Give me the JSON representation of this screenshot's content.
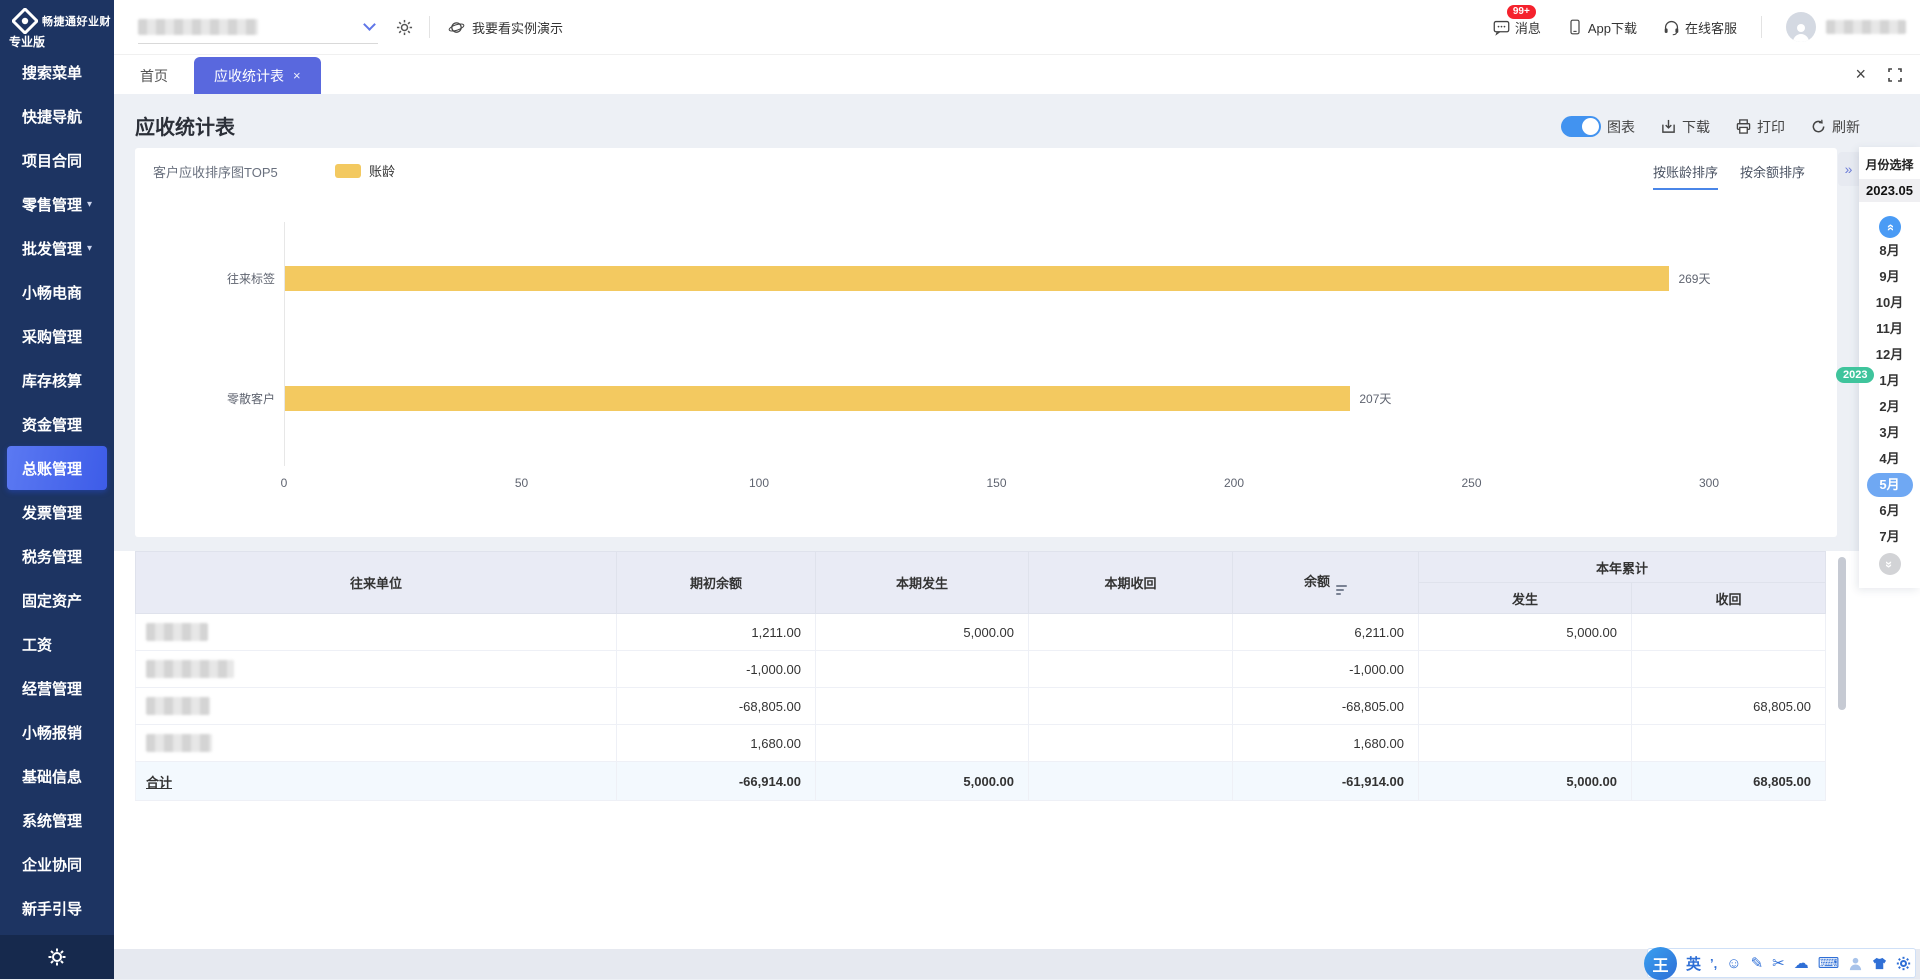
{
  "brand": {
    "name": "畅捷通好业财",
    "edition": "专业版"
  },
  "topbar": {
    "demo_text": "我要看实例演示",
    "messages_label": "消息",
    "messages_badge": "99+",
    "app_download_label": "App下载",
    "online_service_label": "在线客服"
  },
  "tabs": {
    "home": "首页",
    "active": "应收统计表",
    "close": "×"
  },
  "page": {
    "title": "应收统计表"
  },
  "toolbar": {
    "chart_toggle": "图表",
    "download": "下载",
    "print": "打印",
    "refresh": "刷新"
  },
  "sidebar": {
    "items": [
      {
        "label": "搜索菜单"
      },
      {
        "label": "快捷导航"
      },
      {
        "label": "项目合同"
      },
      {
        "label": "零售管理",
        "expandable": true
      },
      {
        "label": "批发管理",
        "expandable": true
      },
      {
        "label": "小畅电商"
      },
      {
        "label": "采购管理"
      },
      {
        "label": "库存核算"
      },
      {
        "label": "资金管理"
      },
      {
        "label": "总账管理",
        "active": true
      },
      {
        "label": "发票管理"
      },
      {
        "label": "税务管理"
      },
      {
        "label": "固定资产"
      },
      {
        "label": "工资"
      },
      {
        "label": "经营管理"
      },
      {
        "label": "小畅报销"
      },
      {
        "label": "基础信息"
      },
      {
        "label": "系统管理"
      },
      {
        "label": "企业协同"
      },
      {
        "label": "新手引导"
      }
    ]
  },
  "chart": {
    "title": "客户应收排序图TOP5",
    "legend": "账龄",
    "sort_by_age": "按账龄排序",
    "sort_by_balance": "按余额排序"
  },
  "chart_data": {
    "type": "bar",
    "orientation": "horizontal",
    "title": "客户应收排序图TOP5",
    "series_name": "账龄",
    "categories": [
      "往来标签",
      "零散客户"
    ],
    "values": [
      269,
      207
    ],
    "value_labels": [
      "269天",
      "207天"
    ],
    "unit": "天",
    "xlim": [
      0,
      300
    ],
    "xticks": [
      "0",
      "50",
      "100",
      "150",
      "200",
      "250",
      "300"
    ],
    "bar_color": "#F3C960",
    "grid": false,
    "legend_position": "top-left"
  },
  "month_panel": {
    "title": "月份选择",
    "current": "2023.05",
    "year_badge": "2023",
    "months": [
      "8月",
      "9月",
      "10月",
      "11月",
      "12月",
      "1月",
      "2月",
      "3月",
      "4月",
      "5月",
      "6月",
      "7月"
    ],
    "active_month": "5月"
  },
  "table": {
    "headers": {
      "party": "往来单位",
      "opening_balance": "期初余额",
      "current_incurred": "本期发生",
      "current_received": "本期收回",
      "balance": "余额",
      "ytd": "本年累计",
      "ytd_incurred": "发生",
      "ytd_received": "收回"
    },
    "rows": [
      {
        "values": [
          "1,211.00",
          "5,000.00",
          "",
          "6,211.00",
          "5,000.00",
          ""
        ]
      },
      {
        "values": [
          "-1,000.00",
          "",
          "",
          "-1,000.00",
          "",
          ""
        ]
      },
      {
        "values": [
          "-68,805.00",
          "",
          "",
          "-68,805.00",
          "",
          "68,805.00"
        ]
      },
      {
        "values": [
          "1,680.00",
          "",
          "",
          "1,680.00",
          "",
          ""
        ]
      }
    ],
    "total": {
      "label": "合计",
      "values": [
        "-66,914.00",
        "5,000.00",
        "",
        "-61,914.00",
        "5,000.00",
        "68,805.00"
      ]
    }
  },
  "ime": {
    "logo": "王",
    "lang": "英",
    "punct": "’,"
  }
}
